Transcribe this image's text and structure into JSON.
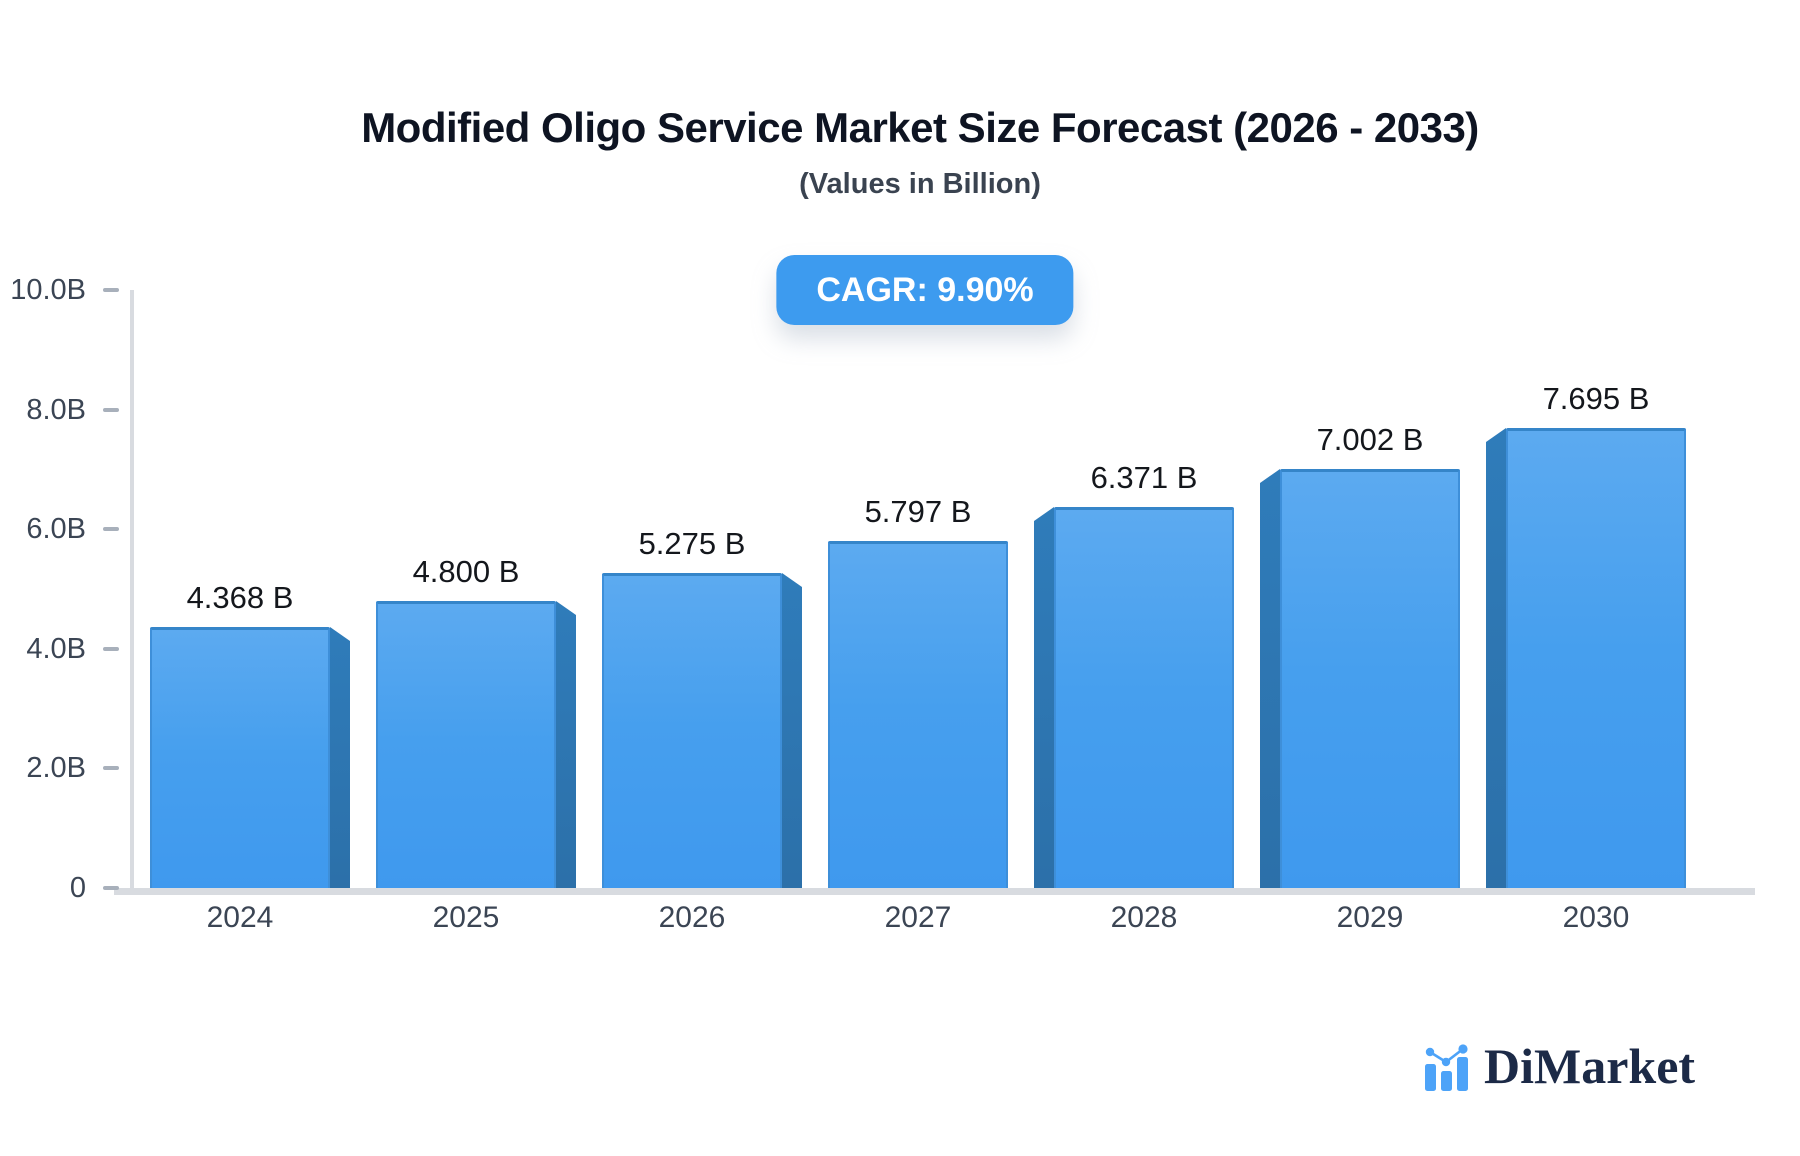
{
  "title": "Modified Oligo Service Market Size Forecast (2026 - 2033)",
  "subtitle": "(Values in Billion)",
  "badge": {
    "label": "CAGR: 9.90%",
    "bg_color": "#3d9bef",
    "text_color": "#ffffff"
  },
  "chart_data": {
    "type": "bar",
    "title": "Modified Oligo Service Market Size Forecast (2026 - 2033)",
    "subtitle": "(Values in Billion)",
    "categories": [
      "2024",
      "2025",
      "2026",
      "2027",
      "2028",
      "2029",
      "2030"
    ],
    "values": [
      4.368,
      4.8,
      5.275,
      5.797,
      6.371,
      7.002,
      7.695
    ],
    "bar_labels": [
      "4.368 B",
      "4.800 B",
      "5.275 B",
      "5.797 B",
      "6.371 B",
      "7.002 B",
      "7.695 B"
    ],
    "xlabel": "",
    "ylabel": "",
    "ylim": [
      0,
      10
    ],
    "ytick_values": [
      0,
      2,
      4,
      6,
      8,
      10
    ],
    "ytick_labels": [
      "0",
      "2.0B",
      "4.0B",
      "6.0B",
      "8.0B",
      "10.0B"
    ],
    "grid": false,
    "legend": false,
    "bar_color": "#469fee",
    "bar_side_color": "#2d76b5",
    "style": "3d-beveled-bars, side face toward center bar"
  },
  "annotations": {
    "cagr": "CAGR: 9.90%"
  },
  "watermark": {
    "brand": "DiMarket",
    "icon": "bar-chart-logo-icon",
    "icon_color": "#4da3f8",
    "text_color": "#1c2a47"
  }
}
